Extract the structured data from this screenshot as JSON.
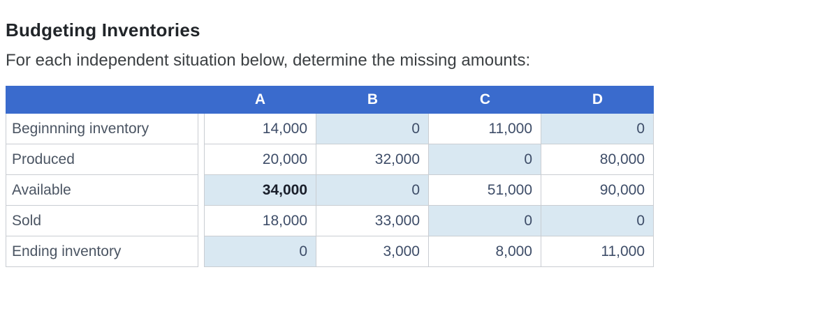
{
  "page": {
    "title": "Budgeting Inventories",
    "subtitle": "For each independent situation below, determine the missing amounts:"
  },
  "table": {
    "columns": [
      "A",
      "B",
      "C",
      "D"
    ],
    "rows": [
      {
        "label": "Beginnning inventory",
        "values": [
          "14,000",
          "0",
          "11,000",
          "0"
        ],
        "highlight": [
          false,
          true,
          false,
          true
        ],
        "bold": [
          false,
          false,
          false,
          false
        ]
      },
      {
        "label": "Produced",
        "values": [
          "20,000",
          "32,000",
          "0",
          "80,000"
        ],
        "highlight": [
          false,
          false,
          true,
          false
        ],
        "bold": [
          false,
          false,
          false,
          false
        ]
      },
      {
        "label": "Available",
        "values": [
          "34,000",
          "0",
          "51,000",
          "90,000"
        ],
        "highlight": [
          true,
          true,
          false,
          false
        ],
        "bold": [
          true,
          false,
          false,
          false
        ]
      },
      {
        "label": "Sold",
        "values": [
          "18,000",
          "33,000",
          "0",
          "0"
        ],
        "highlight": [
          false,
          false,
          true,
          true
        ],
        "bold": [
          false,
          false,
          false,
          false
        ]
      },
      {
        "label": "Ending inventory",
        "values": [
          "0",
          "3,000",
          "8,000",
          "11,000"
        ],
        "highlight": [
          true,
          false,
          false,
          false
        ],
        "bold": [
          false,
          false,
          false,
          false
        ]
      }
    ],
    "colors": {
      "header_bg": "#3a6bcd",
      "header_text": "#ffffff",
      "highlight_bg": "#d9e8f2",
      "border": "#c9cdd2",
      "number_text": "#3e4d68",
      "label_text": "#4b5563"
    }
  }
}
